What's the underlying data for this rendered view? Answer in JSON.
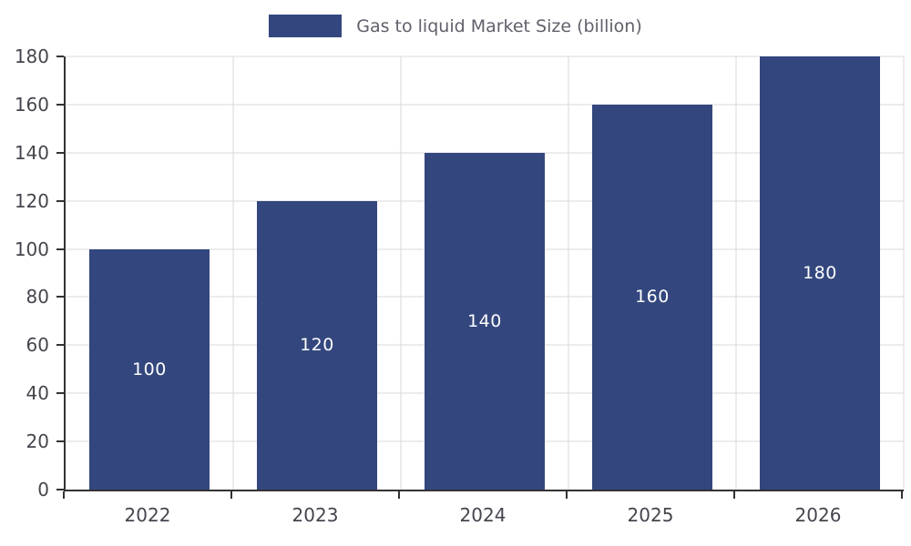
{
  "legend": {
    "swatch_color": "#33477e"
  },
  "chart_data": {
    "type": "bar",
    "title": "Gas to liquid Market Size (billion)",
    "categories": [
      "2022",
      "2023",
      "2024",
      "2025",
      "2026"
    ],
    "values": [
      100,
      120,
      140,
      160,
      180
    ],
    "xlabel": "",
    "ylabel": "",
    "ylim": [
      0,
      180
    ],
    "y_ticks": [
      0,
      20,
      40,
      60,
      80,
      100,
      120,
      140,
      160,
      180
    ],
    "grid": true,
    "legend_position": "top-center",
    "bar_color": "#33477e",
    "bar_label_color": "#ffffff",
    "axis_color": "#333333",
    "grid_color": "#d9d9d9",
    "tick_label_color": "#45454f",
    "title_color": "#60606b"
  }
}
